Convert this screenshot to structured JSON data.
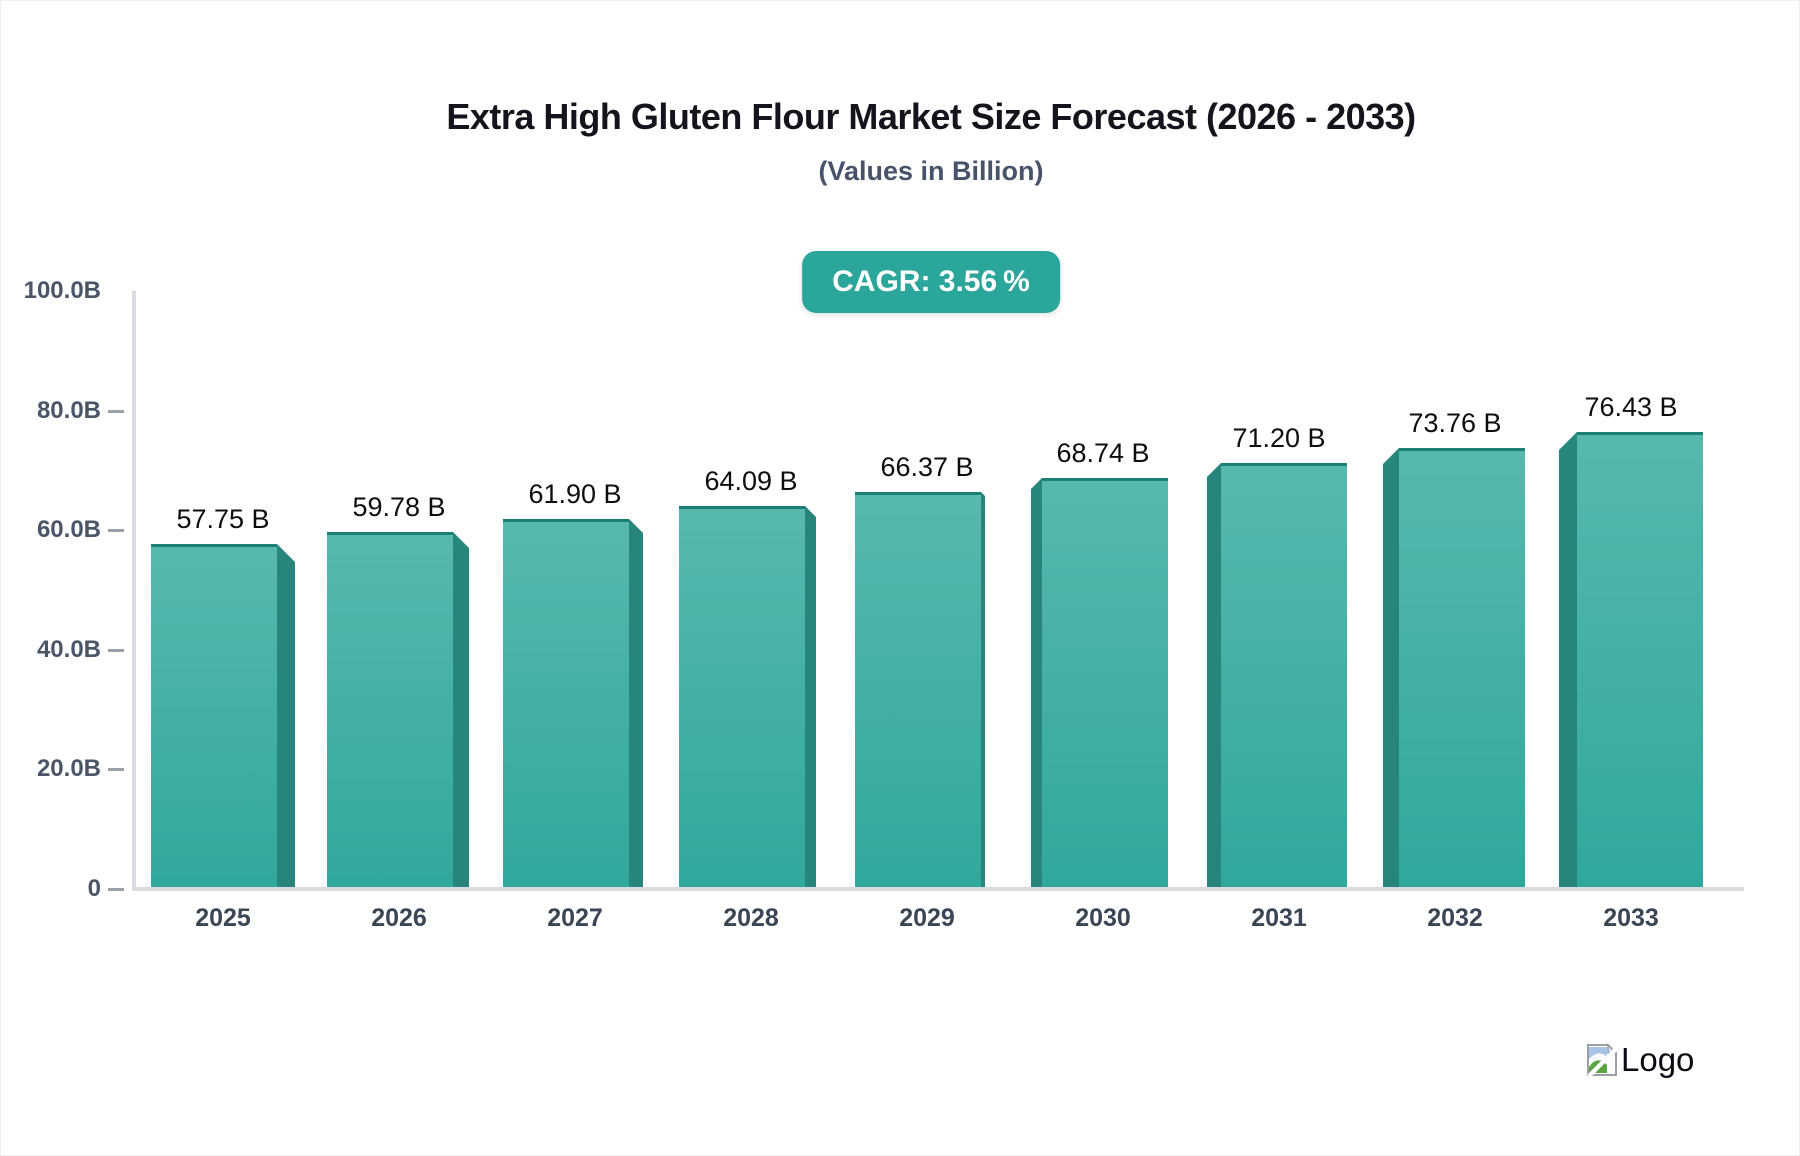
{
  "header": {
    "title": "Extra High Gluten Flour Market Size Forecast (2026 - 2033)",
    "subtitle": "(Values in Billion)",
    "cagr_badge": "CAGR: 3.56 %"
  },
  "chart_data": {
    "type": "bar",
    "title": "Extra High Gluten Flour Market Size Forecast (2026 - 2033)",
    "subtitle": "(Values in Billion)",
    "xlabel": "",
    "ylabel": "",
    "unit": "Billion",
    "cagr": "3.56%",
    "categories": [
      "2025",
      "2026",
      "2027",
      "2028",
      "2029",
      "2030",
      "2031",
      "2032",
      "2033"
    ],
    "values": [
      57.75,
      59.78,
      61.9,
      64.09,
      66.37,
      68.74,
      71.2,
      73.76,
      76.43
    ],
    "value_labels": [
      "57.75 B",
      "59.78 B",
      "61.90 B",
      "64.09 B",
      "66.37 B",
      "68.74 B",
      "71.20 B",
      "73.76 B",
      "76.43 B"
    ],
    "ylim": [
      0,
      100
    ],
    "yticks": [
      {
        "label": "100.0B",
        "value": 100,
        "dash": false
      },
      {
        "label": "80.0B",
        "value": 80,
        "dash": true
      },
      {
        "label": "60.0B",
        "value": 60,
        "dash": true
      },
      {
        "label": "40.0B",
        "value": 40,
        "dash": true
      },
      {
        "label": "20.0B",
        "value": 20,
        "dash": true
      },
      {
        "label": "0",
        "value": 0,
        "dash": true
      }
    ],
    "grid": false,
    "legend": "none",
    "colors": {
      "bar_face_top": "#58b8ad",
      "bar_face_bottom": "#2fa89b",
      "bar_side": "#27857b",
      "bar_top_edge": "#1c8076",
      "badge_bg": "#2aa69a",
      "badge_text": "#ffffff",
      "axis_line": "#d8dbe0",
      "ytick_text": "#4a5568",
      "xtick_text": "#3a4556",
      "value_text": "#0e0e0e"
    }
  },
  "footer": {
    "logo_alt": "Logo"
  }
}
